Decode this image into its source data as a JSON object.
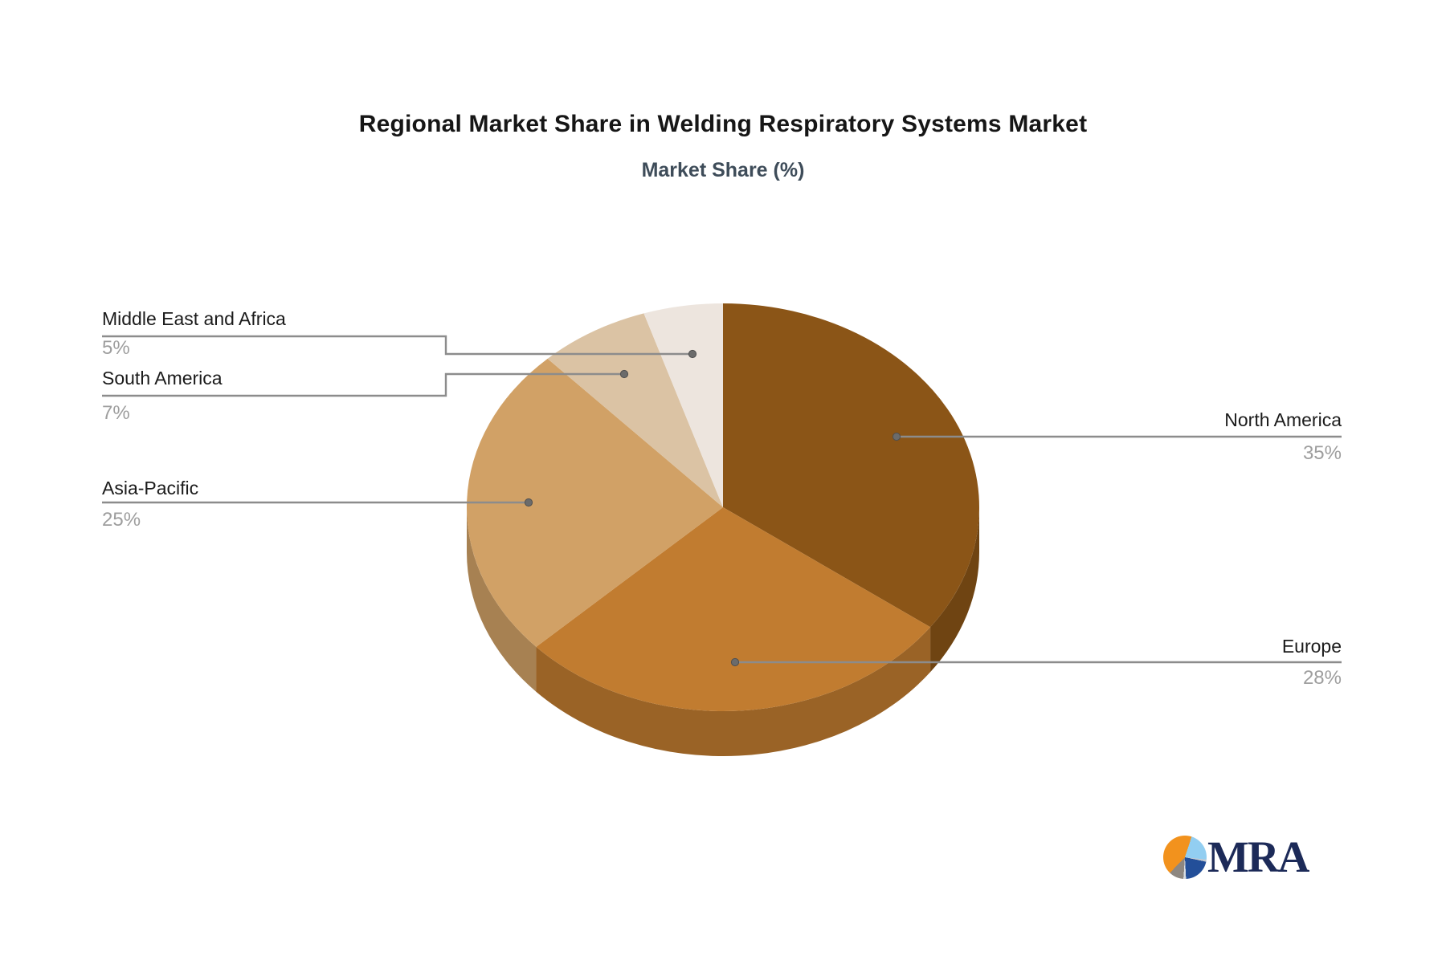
{
  "chart_data": {
    "type": "pie",
    "title": "Regional Market Share in Welding Respiratory Systems Market",
    "subtitle": "Market Share (%)",
    "unit": "%",
    "effect": "3d",
    "start_angle_deg": 0,
    "direction": "clockwise",
    "slices": [
      {
        "name": "North America",
        "value": 35,
        "pct_label": "35%",
        "color": "#8B5517"
      },
      {
        "name": "Europe",
        "value": 28,
        "pct_label": "28%",
        "color": "#C17C30"
      },
      {
        "name": "Asia-Pacific",
        "value": 25,
        "pct_label": "25%",
        "color": "#D1A166"
      },
      {
        "name": "South America",
        "value": 7,
        "pct_label": "7%",
        "color": "#DBC3A4"
      },
      {
        "name": "Middle East and Africa",
        "value": 5,
        "pct_label": "5%",
        "color": "#EDE5DE"
      }
    ],
    "leader_line_color": "#8c8c8c",
    "label_color": "#1b1b1b",
    "pct_color": "#9e9e9e"
  },
  "logo": {
    "text": "MRA"
  }
}
